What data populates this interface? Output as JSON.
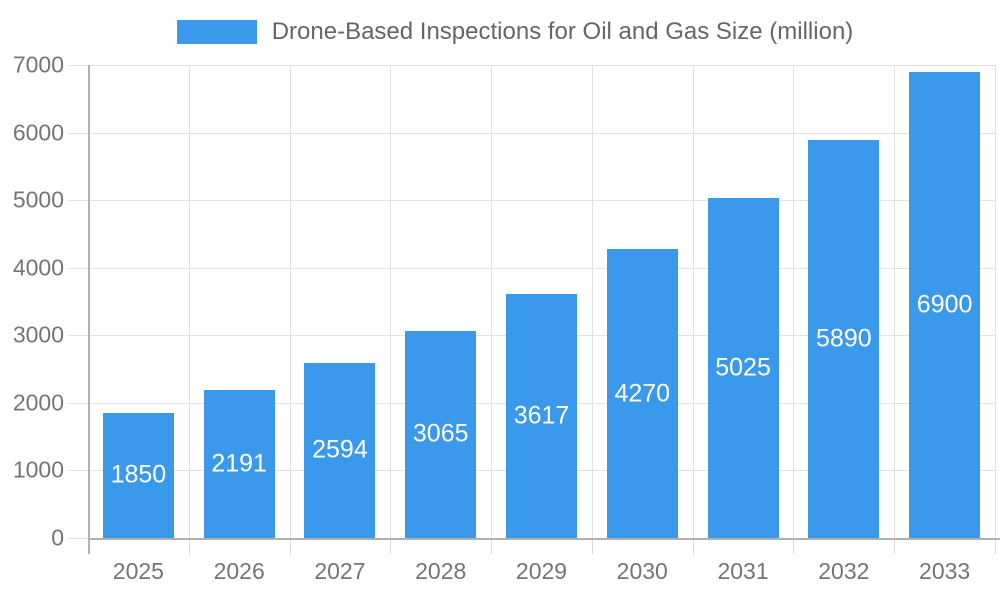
{
  "legend": {
    "label": "Drone-Based Inspections for Oil and Gas Size (million)"
  },
  "chart_data": {
    "type": "bar",
    "title": "Drone-Based Inspections for Oil and Gas Size (million)",
    "categories": [
      "2025",
      "2026",
      "2027",
      "2028",
      "2029",
      "2030",
      "2031",
      "2032",
      "2033"
    ],
    "values": [
      1850,
      2191,
      2594,
      3065,
      3617,
      4270,
      5025,
      5890,
      6900
    ],
    "xlabel": "",
    "ylabel": "",
    "ylim": [
      0,
      7000
    ],
    "yticks": [
      0,
      1000,
      2000,
      3000,
      4000,
      5000,
      6000,
      7000
    ],
    "grid": true,
    "legend_position": "top",
    "bar_color": "#3b99ec",
    "value_label_color": "#ffffff",
    "axis_label_color": "#757575",
    "title_color": "#666666",
    "gridline_color": "#e2e2e2",
    "axis_line_color": "#b0b0b0",
    "background_color": "#ffffff"
  }
}
